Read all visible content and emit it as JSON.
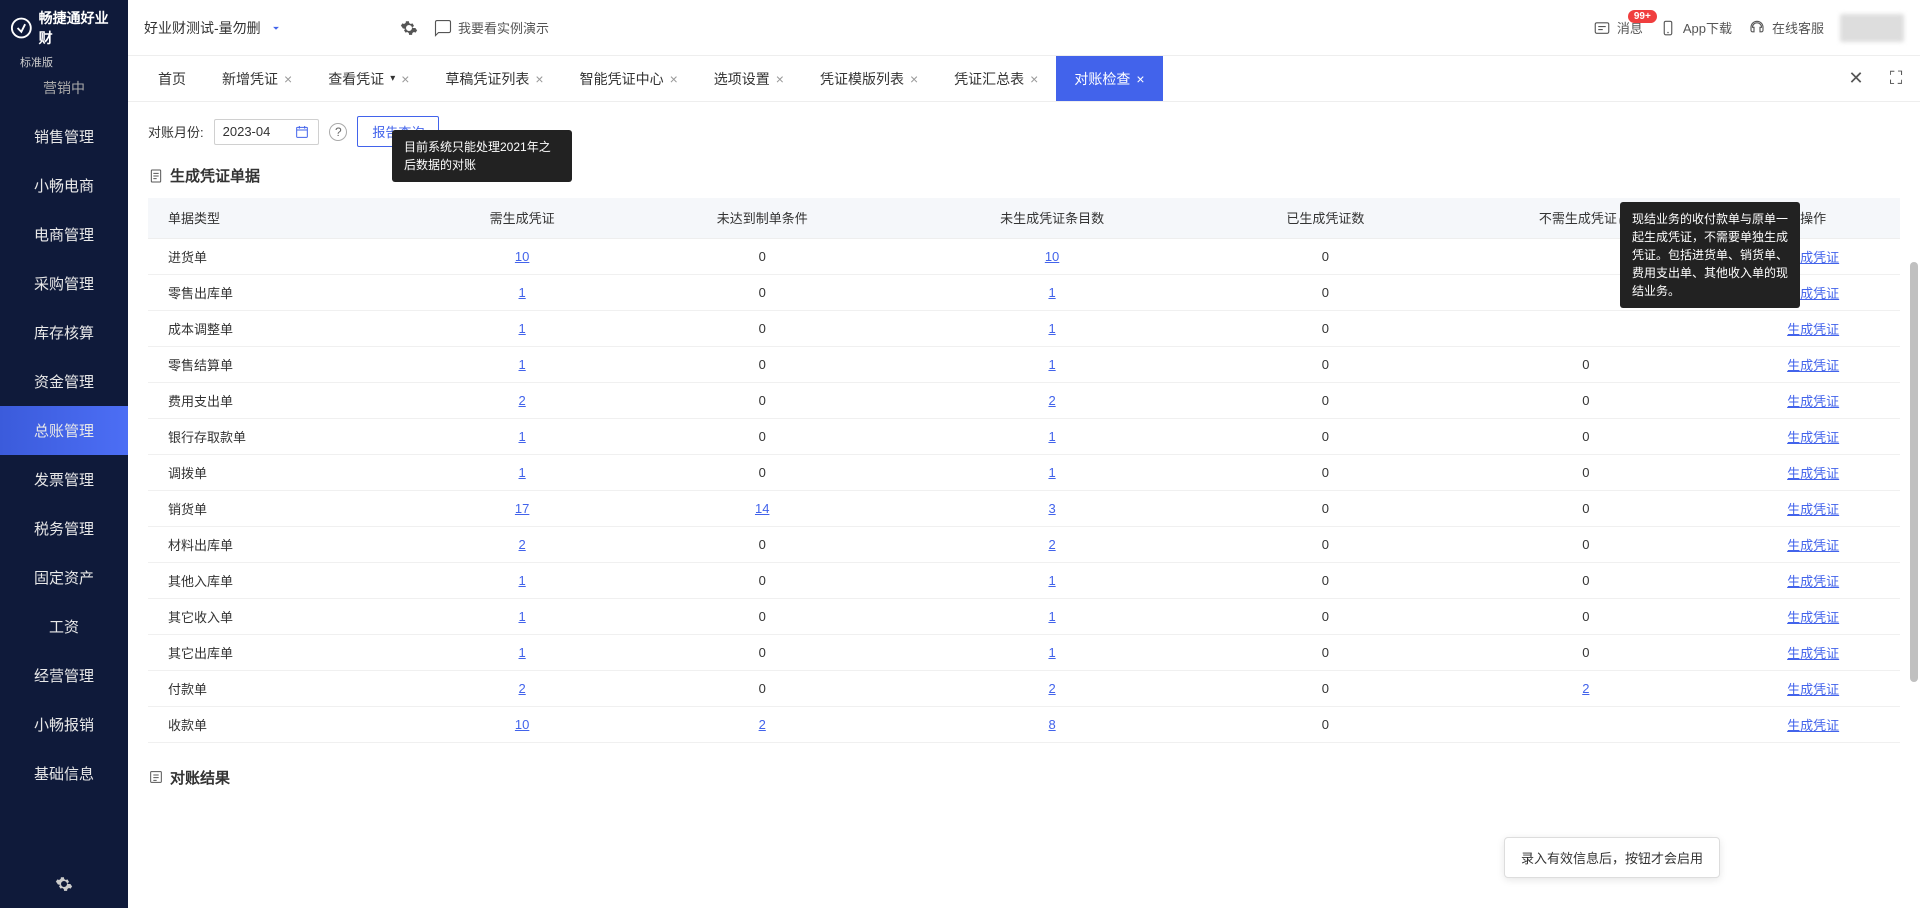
{
  "brand": {
    "name": "畅捷通好业财",
    "edition": "标准版"
  },
  "topbar": {
    "org": "好业财测试-量勿删",
    "demo": "我要看实例演示",
    "msg": "消息",
    "badge": "99+",
    "app": "App下载",
    "service": "在线客服"
  },
  "sidebar": {
    "cut": "营销中",
    "items": [
      "销售管理",
      "小畅电商",
      "电商管理",
      "采购管理",
      "库存核算",
      "资金管理",
      "总账管理",
      "发票管理",
      "税务管理",
      "固定资产",
      "工资",
      "经营管理",
      "小畅报销",
      "基础信息"
    ],
    "activeIndex": 6
  },
  "tabs": {
    "items": [
      {
        "label": "首页",
        "closable": false
      },
      {
        "label": "新增凭证",
        "closable": true
      },
      {
        "label": "查看凭证",
        "closable": true,
        "dropdown": true
      },
      {
        "label": "草稿凭证列表",
        "closable": true
      },
      {
        "label": "智能凭证中心",
        "closable": true
      },
      {
        "label": "选项设置",
        "closable": true
      },
      {
        "label": "凭证模版列表",
        "closable": true
      },
      {
        "label": "凭证汇总表",
        "closable": true
      },
      {
        "label": "对账检查",
        "closable": true,
        "active": true
      }
    ]
  },
  "filter": {
    "label": "对账月份:",
    "date": "2023-04",
    "reportBtn": "报告查询",
    "helpTip": "目前系统只能处理2021年之后数据的对账"
  },
  "section1": {
    "title": "生成凭证单据",
    "columns": [
      "单据类型",
      "需生成凭证",
      "未达到制单条件",
      "未生成凭证条目数",
      "已生成凭证数",
      "不需生成凭证",
      "操作"
    ],
    "helpTip": "现结业务的收付款单与原单一起生成凭证，不需要单独生成凭证。包括进货单、销货单、费用支出单、其他收入单的现结业务。",
    "actionLabel": "生成凭证",
    "rows": [
      {
        "type": "进货单",
        "need": "10",
        "notReady": "0",
        "notGen": "10",
        "gen": "0",
        "noNeed": ""
      },
      {
        "type": "零售出库单",
        "need": "1",
        "notReady": "0",
        "notGen": "1",
        "gen": "0",
        "noNeed": ""
      },
      {
        "type": "成本调整单",
        "need": "1",
        "notReady": "0",
        "notGen": "1",
        "gen": "0",
        "noNeed": ""
      },
      {
        "type": "零售结算单",
        "need": "1",
        "notReady": "0",
        "notGen": "1",
        "gen": "0",
        "noNeed": "0"
      },
      {
        "type": "费用支出单",
        "need": "2",
        "notReady": "0",
        "notGen": "2",
        "gen": "0",
        "noNeed": "0"
      },
      {
        "type": "银行存取款单",
        "need": "1",
        "notReady": "0",
        "notGen": "1",
        "gen": "0",
        "noNeed": "0"
      },
      {
        "type": "调拨单",
        "need": "1",
        "notReady": "0",
        "notGen": "1",
        "gen": "0",
        "noNeed": "0"
      },
      {
        "type": "销货单",
        "need": "17",
        "notReady": "14",
        "notGen": "3",
        "gen": "0",
        "noNeed": "0"
      },
      {
        "type": "材料出库单",
        "need": "2",
        "notReady": "0",
        "notGen": "2",
        "gen": "0",
        "noNeed": "0"
      },
      {
        "type": "其他入库单",
        "need": "1",
        "notReady": "0",
        "notGen": "1",
        "gen": "0",
        "noNeed": "0"
      },
      {
        "type": "其它收入单",
        "need": "1",
        "notReady": "0",
        "notGen": "1",
        "gen": "0",
        "noNeed": "0"
      },
      {
        "type": "其它出库单",
        "need": "1",
        "notReady": "0",
        "notGen": "1",
        "gen": "0",
        "noNeed": "0"
      },
      {
        "type": "付款单",
        "need": "2",
        "notReady": "0",
        "notGen": "2",
        "gen": "0",
        "noNeed": "2"
      },
      {
        "type": "收款单",
        "need": "10",
        "notReady": "2",
        "notGen": "8",
        "gen": "0",
        "noNeed": ""
      }
    ]
  },
  "floatTip": "录入有效信息后，按钮才会启用",
  "section2": {
    "title": "对账结果"
  }
}
